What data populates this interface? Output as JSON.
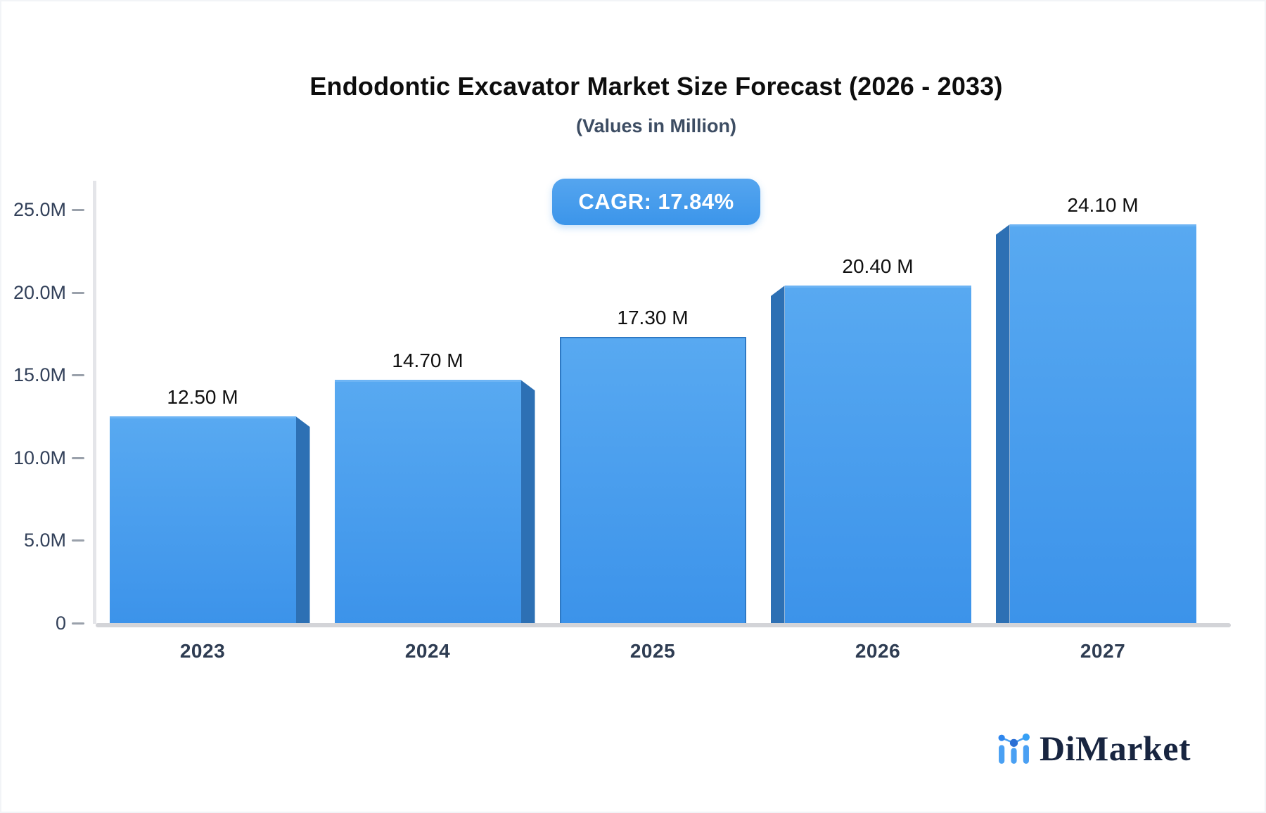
{
  "header": {
    "title": "Endodontic Excavator Market Size Forecast (2026 - 2033)",
    "subtitle": "(Values in Million)",
    "cagr_label": "CAGR: 17.84%"
  },
  "chart_data": {
    "type": "bar",
    "title": "Endodontic Excavator Market Size Forecast (2026 - 2033)",
    "subtitle": "(Values in Million)",
    "annotation": "CAGR: 17.84%",
    "categories": [
      "2023",
      "2024",
      "2025",
      "2026",
      "2027"
    ],
    "values": [
      12.5,
      14.7,
      17.3,
      20.4,
      24.1
    ],
    "bar_labels": [
      "12.50 M",
      "14.70 M",
      "17.30 M",
      "20.40 M",
      "24.10 M"
    ],
    "unit": "Million",
    "ylim": [
      0,
      25
    ],
    "yticks": [
      {
        "value": 25,
        "label": "25.0M"
      },
      {
        "value": 20,
        "label": "20.0M"
      },
      {
        "value": 15,
        "label": "15.0M"
      },
      {
        "value": 10,
        "label": "10.0M"
      },
      {
        "value": 5,
        "label": "5.0M"
      },
      {
        "value": 0,
        "label": "0"
      }
    ],
    "grid": false,
    "legend": "none",
    "bar_style": "3d-bevel"
  },
  "logo": {
    "name": "DiMarket",
    "icon": "bar-chart-trend-icon"
  },
  "colors": {
    "title_color": "#0d0d0d",
    "subtitle_color": "#3d4d63",
    "badge_bg_top": "#55a5ef",
    "badge_bg_bottom": "#3b95ea",
    "badge_text": "#ffffff",
    "bar_top": "#58a9f1",
    "bar_bottom": "#3c93ea",
    "bar_top_edge": "#6db4f4",
    "bar_side": "#2d70b4",
    "bar_front_border": "#2e79c4",
    "axis_label": "#33415a",
    "xlabel_color": "#2e3c52",
    "value_label": "#101010",
    "tick": "#9aa1ab",
    "axis_line": "#e4e5e9",
    "baseline": "#d3d4d8",
    "logo_text": "#182540",
    "logo_bar": "#4aa0f3",
    "logo_dot_left": "#2e86ee",
    "logo_dot_mid": "#2b6fd4",
    "logo_dot_right": "#36a0f5"
  }
}
